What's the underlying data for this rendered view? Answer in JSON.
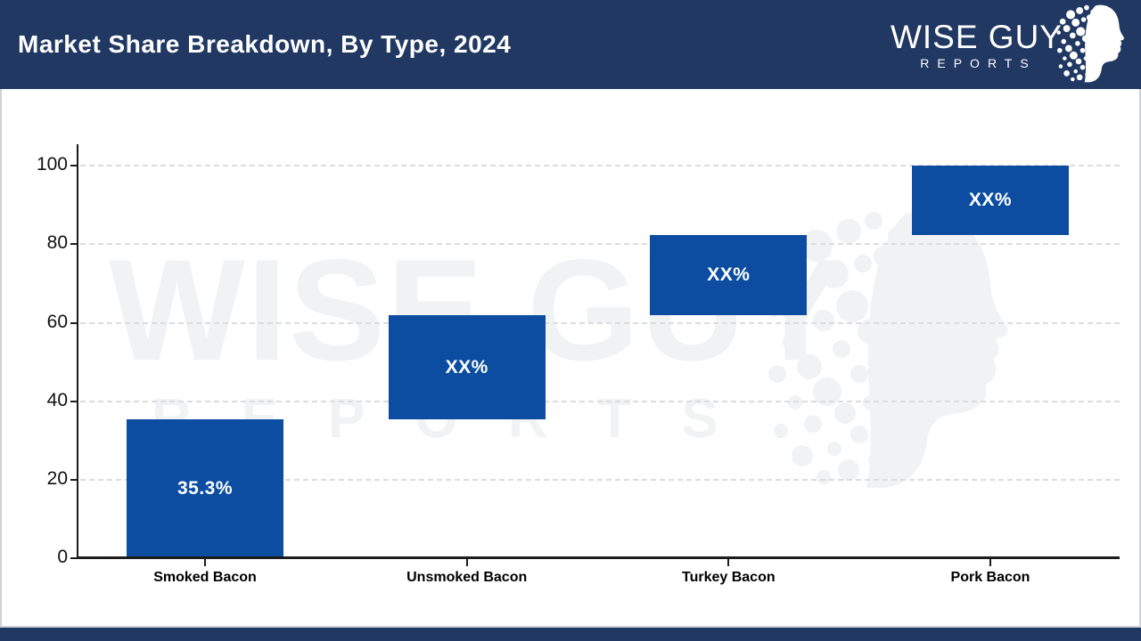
{
  "header": {
    "title": "Market Share Breakdown, By Type, 2024",
    "brand": {
      "line1": "WISE GUY",
      "line2": "REPORTS"
    }
  },
  "watermark": {
    "line1": "WISE GUY",
    "line2": "REPORTS"
  },
  "colors": {
    "banner": "#213863",
    "bar": "#0c4da2",
    "gridline": "#dcdcdc",
    "axis": "#1c1c1c",
    "bar_label": "#ffffff",
    "watermark": "#f1f2f4"
  },
  "chart_data": {
    "type": "bar",
    "subtype": "waterfall",
    "title": "Market Share Breakdown, By Type, 2024",
    "categories": [
      "Smoked Bacon",
      "Unsmoked Bacon",
      "Turkey Bacon",
      "Pork Bacon"
    ],
    "segments": [
      {
        "category": "Smoked Bacon",
        "start": 0,
        "end": 35.3,
        "label": "35.3%"
      },
      {
        "category": "Unsmoked Bacon",
        "start": 35.3,
        "end": 61.9,
        "label": "XX%"
      },
      {
        "category": "Turkey Bacon",
        "start": 61.9,
        "end": 82.4,
        "label": "XX%"
      },
      {
        "category": "Pork Bacon",
        "start": 82.4,
        "end": 100,
        "label": "XX%"
      }
    ],
    "yticks": [
      0,
      20,
      40,
      60,
      80,
      100
    ],
    "ylim": [
      0,
      105
    ],
    "xlabel": "",
    "ylabel": "",
    "grid": "horizontal-dashed",
    "legend": "none"
  }
}
